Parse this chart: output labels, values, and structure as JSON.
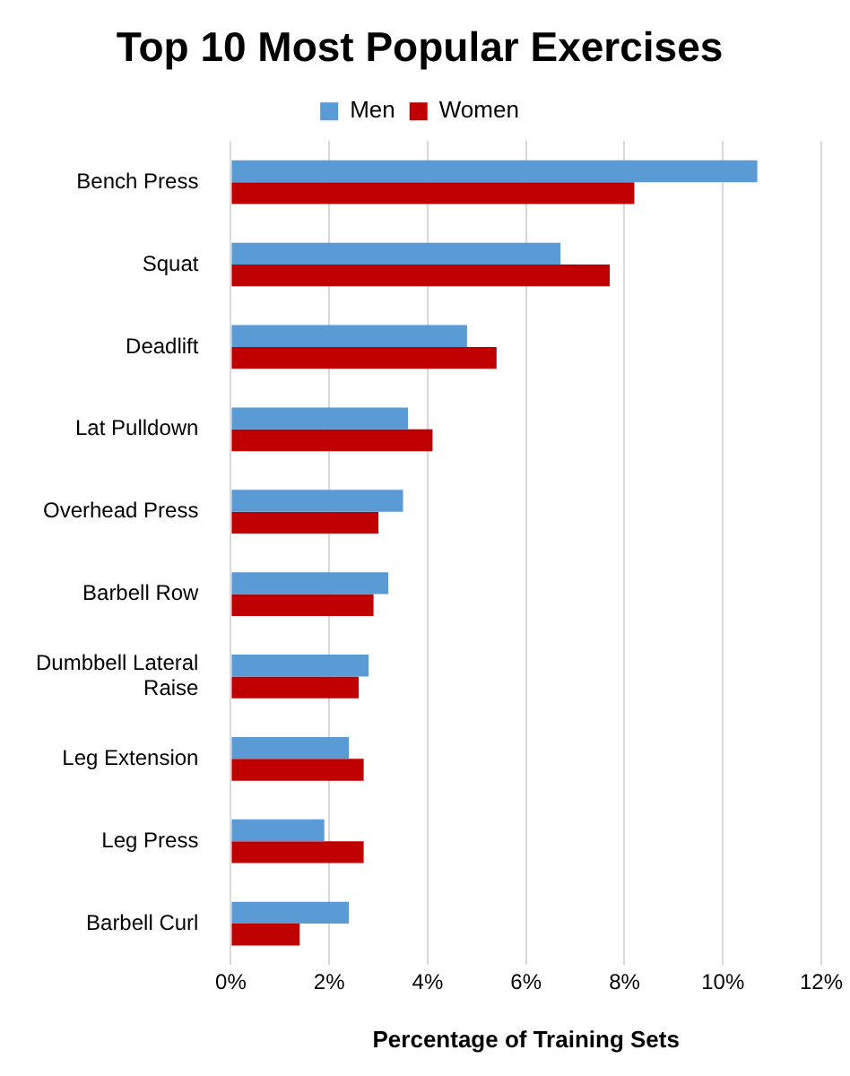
{
  "chart_data": {
    "type": "bar",
    "orientation": "horizontal",
    "title": "Top 10 Most Popular Exercises",
    "xlabel": "Percentage of Training Sets",
    "categories": [
      "Bench Press",
      "Squat",
      "Deadlift",
      "Lat Pulldown",
      "Overhead Press",
      "Barbell Row",
      "Dumbbell Lateral Raise",
      "Leg Extension",
      "Leg Press",
      "Barbell Curl"
    ],
    "series": [
      {
        "name": "Men",
        "color": "#5b9bd5",
        "values": [
          10.7,
          6.7,
          4.8,
          3.6,
          3.5,
          3.2,
          2.8,
          2.4,
          1.9,
          2.4
        ]
      },
      {
        "name": "Women",
        "color": "#c00000",
        "values": [
          8.2,
          7.7,
          5.4,
          4.1,
          3.0,
          2.9,
          2.6,
          2.7,
          2.7,
          1.4
        ]
      }
    ],
    "xlim": [
      0,
      12
    ],
    "xticks": [
      {
        "value": 0,
        "label": "0%"
      },
      {
        "value": 2,
        "label": "2%"
      },
      {
        "value": 4,
        "label": "4%"
      },
      {
        "value": 6,
        "label": "6%"
      },
      {
        "value": 8,
        "label": "8%"
      },
      {
        "value": 10,
        "label": "10%"
      },
      {
        "value": 12,
        "label": "12%"
      }
    ],
    "grid": "x",
    "legend": "top"
  }
}
